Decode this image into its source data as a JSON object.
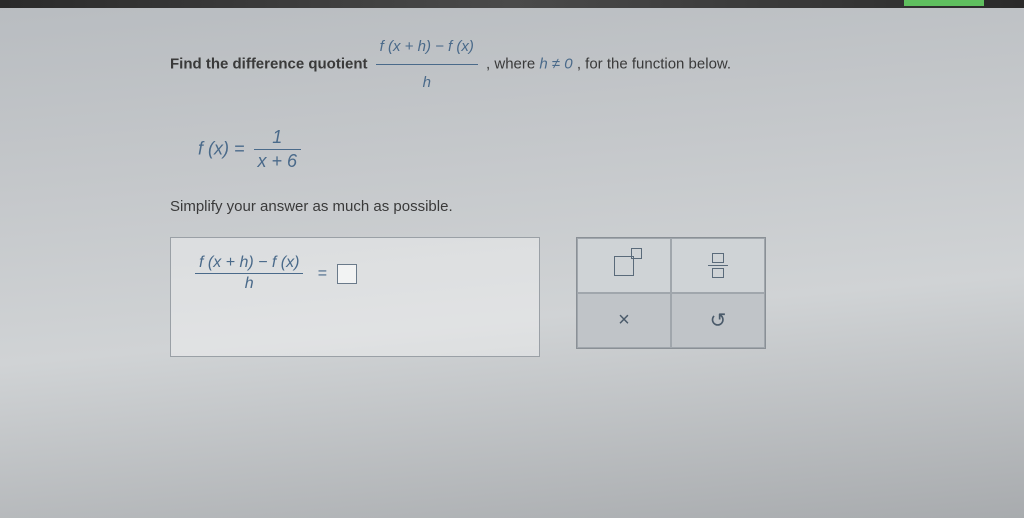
{
  "problem": {
    "prompt_prefix": "Find the difference quotient ",
    "quotient": {
      "numerator": "f (x + h) − f (x)",
      "denominator": "h"
    },
    "prompt_middle": " , where ",
    "condition": "h ≠ 0",
    "prompt_suffix": ", for the function below."
  },
  "function_def": {
    "lhs": "f (x) = ",
    "rhs": {
      "numerator": "1",
      "denominator": "x + 6"
    }
  },
  "simplify_text": "Simplify your answer as much as possible.",
  "answer": {
    "lhs": {
      "numerator": "f (x + h) − f (x)",
      "denominator": "h"
    },
    "equals": " = "
  },
  "toolbox": {
    "exponent_tool": "exponent",
    "fraction_tool": "fraction",
    "clear_tool": "×",
    "undo_tool": "↺"
  },
  "colors": {
    "page_bg_top": "#b8bcc0",
    "page_bg_bottom": "#a8abae",
    "text": "#3a3a3a",
    "math": "#4a6a8a",
    "box_border": "#9aa0a6",
    "tool_bg": "#c0c4c8",
    "tool_bg_light": "#cfd3d6",
    "tool_border": "#a0a6ac"
  }
}
